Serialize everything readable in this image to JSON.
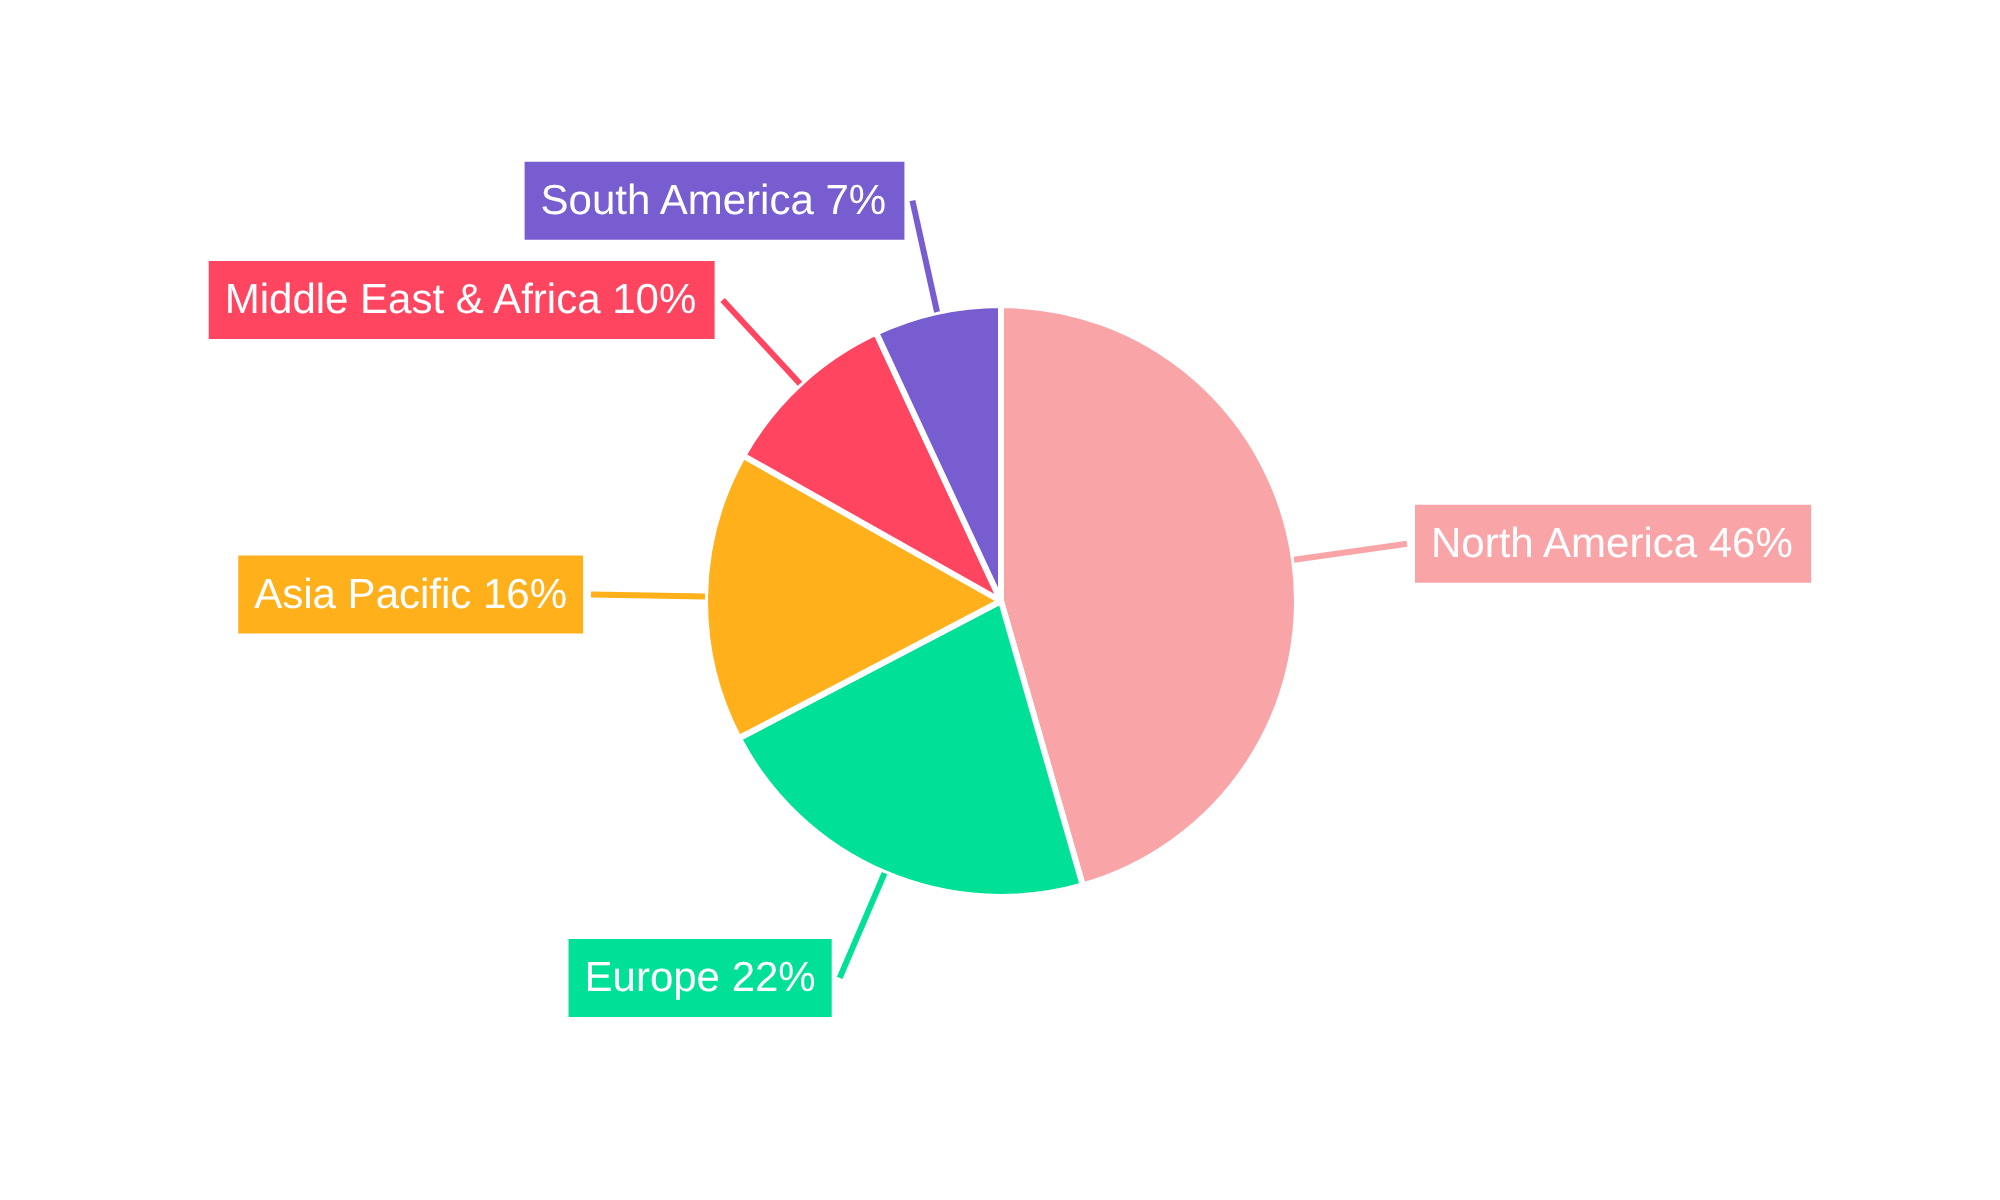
{
  "chart_data": {
    "type": "pie",
    "categories": [
      "North America",
      "Europe",
      "Asia Pacific",
      "Middle East & Africa",
      "South America"
    ],
    "values": [
      46,
      22,
      16,
      10,
      7
    ],
    "value_labels": [
      "46%",
      "22%",
      "16%",
      "10%",
      "7%"
    ],
    "colors": [
      "#f9a5a8",
      "#00e096",
      "#ffb01a",
      "#ff4560",
      "#775dd0"
    ]
  }
}
